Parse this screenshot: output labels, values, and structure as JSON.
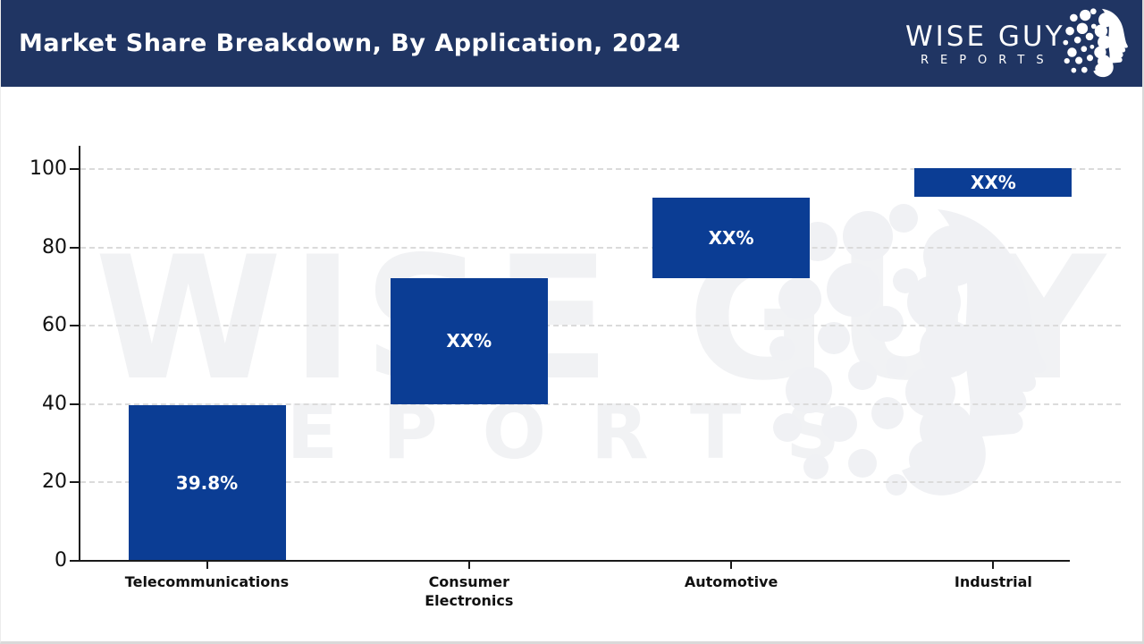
{
  "header": {
    "title": "Market Share Breakdown, By Application, 2024",
    "logo": {
      "line1": "WISE GUY",
      "line2": "REPORTS"
    }
  },
  "watermark": {
    "line1": "WISE GUY",
    "line2": "REPORTS"
  },
  "chart_data": {
    "type": "bar",
    "subtype": "waterfall-floating-segments",
    "title": "Market Share Breakdown, By Application, 2024",
    "xlabel": "",
    "ylabel": "",
    "categories": [
      "Telecommunications",
      "Consumer Electronics",
      "Automotive",
      "Industrial"
    ],
    "categories_display": [
      "Telecommunications",
      "Consumer\nElectronics",
      "Automotive",
      "Industrial"
    ],
    "segments": [
      {
        "category": "Telecommunications",
        "label": "39.8%",
        "start": 0,
        "end": 39.8
      },
      {
        "category": "Consumer Electronics",
        "label": "XX%",
        "start": 40,
        "end": 72.2
      },
      {
        "category": "Automotive",
        "label": "XX%",
        "start": 72.2,
        "end": 92.8
      },
      {
        "category": "Industrial",
        "label": "XX%",
        "start": 93,
        "end": 100.3
      }
    ],
    "yticks": [
      0,
      20,
      40,
      60,
      80,
      100
    ],
    "ylim": [
      0,
      106
    ],
    "grid": "dashed-horizontal",
    "legend": "none",
    "colors": {
      "bar": "#0b3d94",
      "header_bg": "#203563",
      "gridline": "#dbdbdb",
      "axis": "#1a1a1a",
      "bar_label_text": "#ffffff",
      "watermark": "#f1f2f4"
    }
  }
}
